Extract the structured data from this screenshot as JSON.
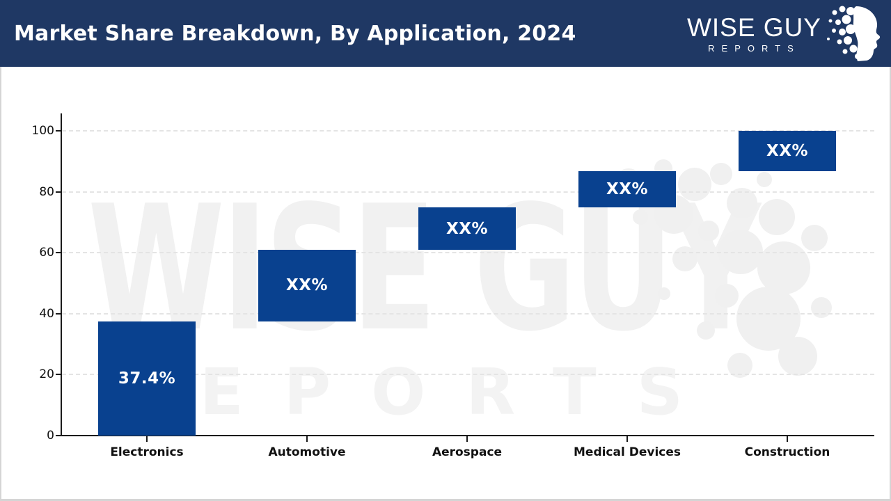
{
  "header": {
    "title": "Market Share Breakdown, By Application, 2024",
    "logo": {
      "line1": "WISE GUY",
      "line2": "REPORTS"
    }
  },
  "watermark": {
    "line1": "WISE GUY",
    "line2": "REPORTS"
  },
  "colors": {
    "header_bg": "#1f3864",
    "bar": "#09418f",
    "bar_label": "#ffffff",
    "gridline": "#e4e4e4",
    "axis": "#1a1a1a",
    "watermark": "#f1f1f1"
  },
  "chart_data": {
    "type": "bar",
    "subtype": "waterfall",
    "title": "Market Share Breakdown, By Application, 2024",
    "xlabel": "",
    "ylabel": "",
    "categories": [
      "Electronics",
      "Automotive",
      "Aerospace",
      "Medical Devices",
      "Construction"
    ],
    "segments": [
      {
        "category": "Electronics",
        "start": 0,
        "end": 37.4,
        "label": "37.4%"
      },
      {
        "category": "Automotive",
        "start": 37.4,
        "end": 61.0,
        "label": "XX%"
      },
      {
        "category": "Aerospace",
        "start": 61.0,
        "end": 74.8,
        "label": "XX%"
      },
      {
        "category": "Medical Devices",
        "start": 74.8,
        "end": 86.8,
        "label": "XX%"
      },
      {
        "category": "Construction",
        "start": 86.8,
        "end": 100.0,
        "label": "XX%"
      }
    ],
    "yticks": [
      0,
      20,
      40,
      60,
      80,
      100
    ],
    "ylim": [
      0,
      105.5
    ],
    "grid": "horizontal-dashed",
    "legend": "none"
  }
}
